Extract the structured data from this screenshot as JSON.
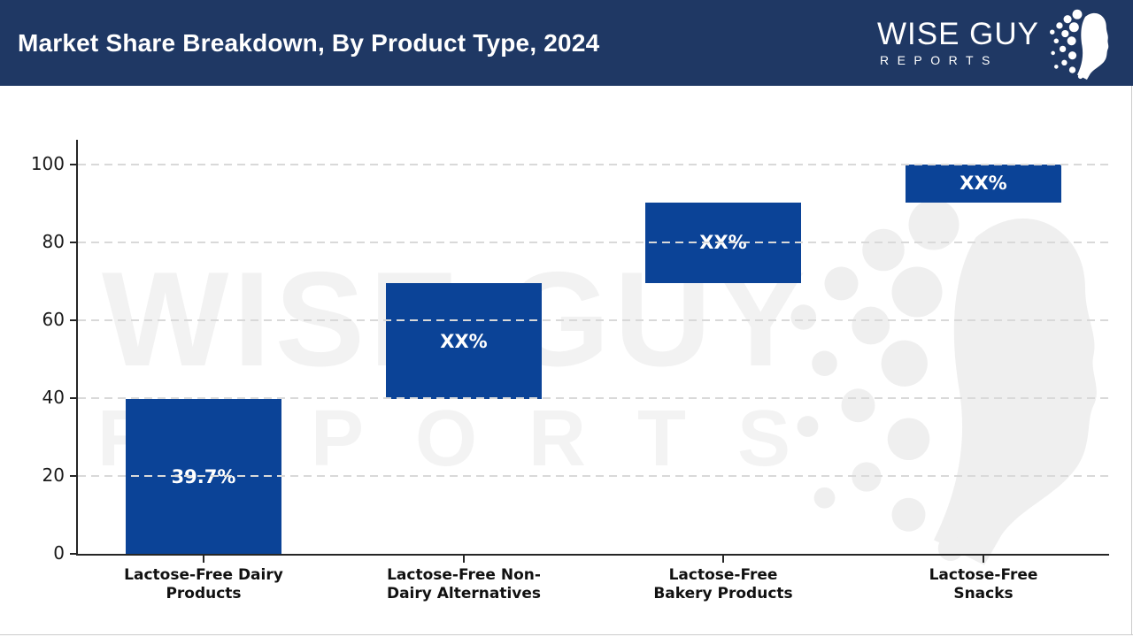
{
  "header": {
    "title": "Market Share Breakdown, By Product Type, 2024",
    "bg_color": "#1f3864",
    "logo": {
      "name": "WISE GUY",
      "tagline": "REPORTS"
    }
  },
  "watermark": {
    "line1": "WISE GUY",
    "line2": "REPORTS"
  },
  "chart_data": {
    "type": "bar",
    "subtype": "waterfall",
    "title": "Market Share Breakdown, By Product Type, 2024",
    "xlabel": "",
    "ylabel": "",
    "categories": [
      "Lactose-Free Dairy Products",
      "Lactose-Free Non-Dairy Alternatives",
      "Lactose-Free Bakery Products",
      "Lactose-Free Snacks"
    ],
    "category_lines": [
      [
        "Lactose-Free Dairy",
        "Products"
      ],
      [
        "Lactose-Free Non-",
        "Dairy Alternatives"
      ],
      [
        "Lactose-Free",
        "Bakery Products"
      ],
      [
        "Lactose-Free",
        "Snacks"
      ]
    ],
    "segments": [
      {
        "category": "Lactose-Free Dairy Products",
        "start": 0,
        "end": 39.7,
        "label": "39.7%"
      },
      {
        "category": "Lactose-Free Non-Dairy Alternatives",
        "start": 39.7,
        "end": 69.5,
        "label": "XX%"
      },
      {
        "category": "Lactose-Free Bakery Products",
        "start": 69.5,
        "end": 90.3,
        "label": "XX%"
      },
      {
        "category": "Lactose-Free Snacks",
        "start": 90.3,
        "end": 100,
        "label": "XX%"
      }
    ],
    "ylim": [
      0,
      100
    ],
    "yticks": [
      0,
      20,
      40,
      60,
      80,
      100
    ],
    "grid": "horizontal dashed gridlines drawn above bars",
    "legend": "none",
    "bar_color": "#0b4397",
    "bar_label_color": "#ffffff",
    "axis_color": "#262626",
    "grid_color": "#d9d9d9",
    "tick_label_color": "#1a1a1a"
  }
}
